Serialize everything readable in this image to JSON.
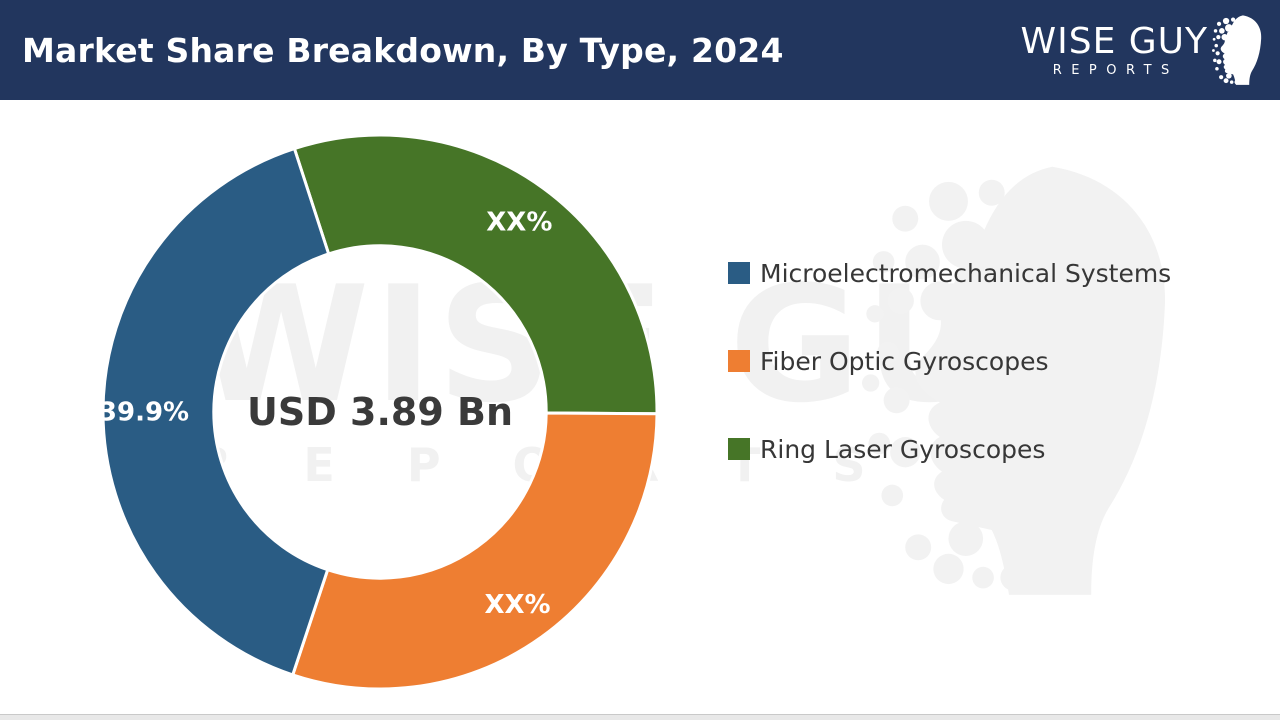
{
  "page": {
    "background": "#ffffff",
    "footer_line_color": "#c9c9c9",
    "footer_strip_color": "#e8e8e8"
  },
  "header": {
    "title": "Market Share Breakdown, By Type, 2024",
    "background": "#22365e",
    "logo": {
      "line1": "WISE GUY",
      "line2": "REPORTS"
    }
  },
  "watermark": {
    "line1": "WISE GUY",
    "line2": "REPORTS"
  },
  "chart_data": {
    "type": "pie",
    "subtype": "donut",
    "title": "Market Share Breakdown, By Type, 2024",
    "center_label": "USD 3.89 Bn",
    "donut_hole_ratio": 0.6,
    "start_angle_deg": -18,
    "grid": false,
    "legend_position": "right",
    "slice_gap_color": "#ffffff",
    "slices": [
      {
        "name": "Ring Laser Gyroscopes",
        "value_pct": 30.1,
        "display_label": "XX%",
        "color": "#467527"
      },
      {
        "name": "Fiber Optic Gyroscopes",
        "value_pct": 30.0,
        "display_label": "XX%",
        "color": "#ee7e32"
      },
      {
        "name": "Microelectromechanical Systems",
        "value_pct": 39.9,
        "display_label": "39.9%",
        "color": "#2a5c84"
      }
    ],
    "legend": [
      "Microelectromechanical Systems",
      "Fiber Optic Gyroscopes",
      "Ring Laser Gyroscopes"
    ]
  }
}
